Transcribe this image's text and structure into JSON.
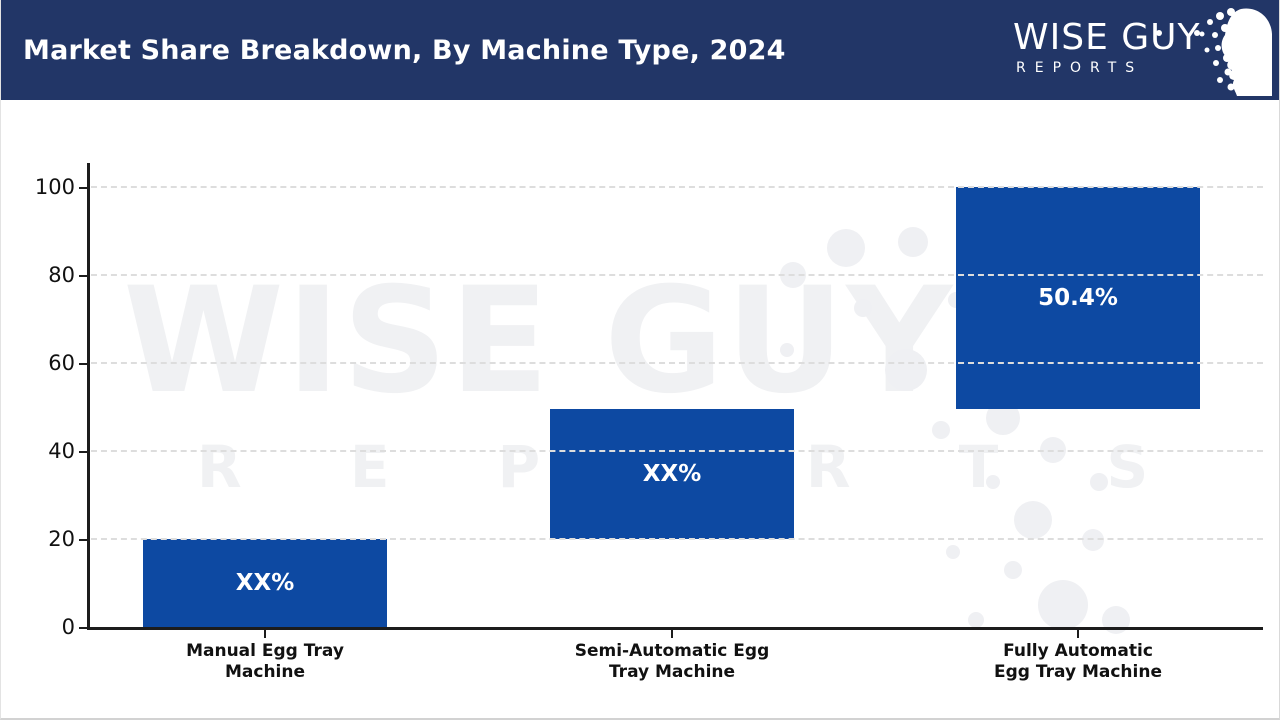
{
  "header": {
    "title": "Market Share Breakdown, By Machine Type, 2024",
    "logo": {
      "wordmark": "WISE GUY",
      "subtext": "REPORTS"
    }
  },
  "watermark": {
    "line1": "WISE GUY",
    "line2": "REPORTS"
  },
  "colors": {
    "header_bg": "#223667",
    "bar": "#0d49a2",
    "grid": "#dddddd",
    "axis": "#1c1c1c",
    "watermark": "#f0f1f3",
    "bar_label": "#ffffff"
  },
  "chart_data": {
    "type": "bar",
    "subtype": "waterfall",
    "title": "Market Share Breakdown, By Machine Type, 2024",
    "categories": [
      "Manual Egg Tray\nMachine",
      "Semi-Automatic Egg\nTray Machine",
      "Fully Automatic\nEgg Tray Machine"
    ],
    "bars": [
      {
        "base": 0,
        "value": 20,
        "top": 20,
        "label": "XX%"
      },
      {
        "base": 20,
        "value": 29.6,
        "top": 49.6,
        "label": "XX%"
      },
      {
        "base": 49.6,
        "value": 50.4,
        "top": 100,
        "label": "50.4%"
      }
    ],
    "ylim": [
      0,
      100
    ],
    "yticks": [
      0,
      20,
      40,
      60,
      80,
      100
    ],
    "grid": "dashed-horizontal",
    "legend": "none",
    "xlabel": "",
    "ylabel": ""
  }
}
